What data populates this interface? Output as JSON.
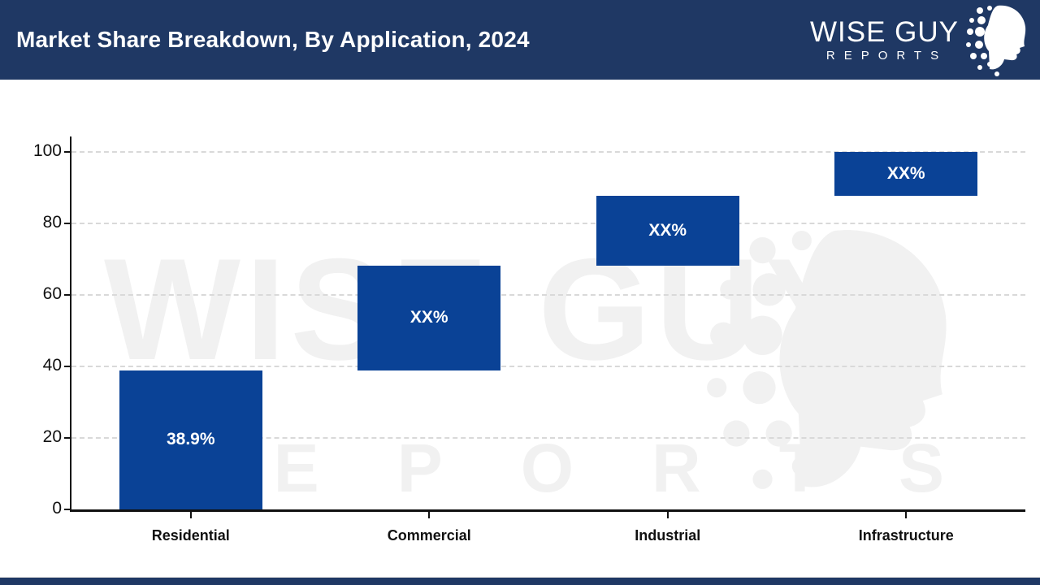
{
  "header": {
    "title": "Market Share Breakdown, By Application, 2024",
    "bg_color": "#1f3864",
    "logo": {
      "line1": "WISE GUY",
      "line2": "REPORTS"
    }
  },
  "watermark": {
    "line1": "WISE GUY",
    "line2": "REPORTS"
  },
  "chart_data": {
    "type": "bar",
    "subtype": "waterfall-floating-bars",
    "title": "Market Share Breakdown, By Application, 2024",
    "categories": [
      "Residential",
      "Commercial",
      "Industrial",
      "Infrastructure"
    ],
    "bars": [
      {
        "category": "Residential",
        "start": 0,
        "end": 38.9,
        "label": "38.9%"
      },
      {
        "category": "Commercial",
        "start": 38.9,
        "end": 68.2,
        "label": "XX%"
      },
      {
        "category": "Industrial",
        "start": 68.2,
        "end": 87.8,
        "label": "XX%"
      },
      {
        "category": "Infrastructure",
        "start": 87.8,
        "end": 100,
        "label": "XX%"
      }
    ],
    "xlabel": "",
    "ylabel": "",
    "ylim": [
      0,
      100
    ],
    "yticks": [
      0,
      20,
      40,
      60,
      80,
      100
    ],
    "grid": true,
    "grid_style": "dashed",
    "legend": "none",
    "bar_color": "#0a4296",
    "bar_label_color": "#ffffff",
    "axis_color": "#111111"
  }
}
